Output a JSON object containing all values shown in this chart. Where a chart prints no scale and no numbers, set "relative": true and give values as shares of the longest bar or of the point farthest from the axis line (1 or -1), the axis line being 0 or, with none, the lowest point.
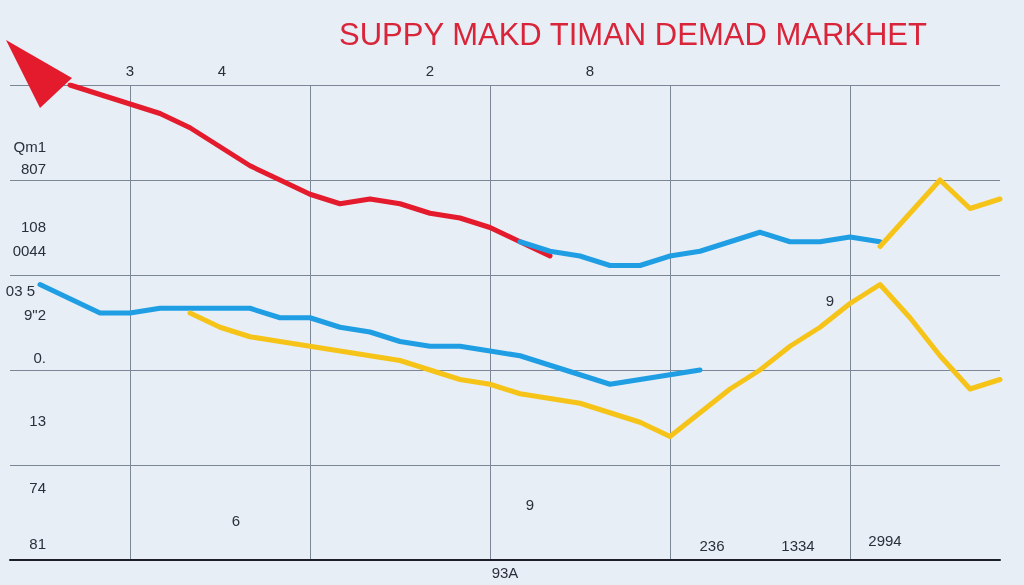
{
  "chart_data": {
    "type": "line",
    "title": "SUPPY MAKD TIMAN DEMAD MARKHET",
    "relative": true,
    "grid": true,
    "marker": "none",
    "categories": [
      null,
      null,
      null,
      null,
      null,
      null,
      null,
      null,
      null,
      null,
      null,
      null,
      null,
      null,
      null,
      null,
      null,
      null,
      null,
      null,
      null,
      null,
      null,
      null,
      null,
      null,
      null,
      null,
      null,
      null,
      null,
      null,
      null,
      null
    ],
    "series": [
      {
        "color": "#e41b2d",
        "values": [
          null,
          null,
          1.0,
          0.98,
          0.96,
          0.94,
          0.91,
          0.87,
          0.83,
          0.8,
          0.77,
          0.75,
          0.76,
          0.75,
          0.73,
          0.72,
          0.7,
          0.67,
          0.64,
          null,
          null,
          null,
          null,
          null,
          null,
          null,
          null,
          null,
          null,
          null,
          null,
          null,
          null,
          null
        ]
      },
      {
        "color": "#1f9ee3",
        "values": [
          null,
          null,
          null,
          null,
          null,
          null,
          null,
          null,
          null,
          null,
          null,
          null,
          null,
          null,
          null,
          null,
          null,
          0.67,
          0.65,
          0.64,
          0.62,
          0.62,
          0.64,
          0.65,
          0.67,
          0.69,
          0.67,
          0.67,
          0.68,
          0.67,
          null,
          null,
          null,
          null
        ]
      },
      {
        "color": "#f6c419",
        "values": [
          null,
          null,
          null,
          null,
          null,
          null,
          null,
          null,
          null,
          null,
          null,
          null,
          null,
          null,
          null,
          null,
          null,
          null,
          null,
          null,
          null,
          null,
          null,
          null,
          null,
          null,
          null,
          null,
          null,
          0.66,
          0.73,
          0.8,
          0.74,
          0.76
        ]
      },
      {
        "color": "#1f9ee3",
        "values": [
          null,
          0.58,
          0.55,
          0.52,
          0.52,
          0.53,
          0.53,
          0.53,
          0.53,
          0.51,
          0.51,
          0.49,
          0.48,
          0.46,
          0.45,
          0.45,
          0.44,
          0.43,
          0.41,
          0.39,
          0.37,
          0.38,
          0.39,
          0.4,
          null,
          null,
          null,
          null,
          null,
          null,
          null,
          null,
          null,
          null
        ]
      },
      {
        "color": "#f6c419",
        "values": [
          null,
          null,
          null,
          null,
          null,
          null,
          0.52,
          0.49,
          0.47,
          0.46,
          0.45,
          0.44,
          0.43,
          0.42,
          0.4,
          0.38,
          0.37,
          0.35,
          0.34,
          0.33,
          0.31,
          0.29,
          0.26,
          0.31,
          0.36,
          0.4,
          0.45,
          0.49,
          0.54,
          0.58,
          0.51,
          0.43,
          0.36,
          0.38
        ]
      }
    ],
    "annotations": [
      "Qm1",
      "807",
      "108",
      "0044",
      "03 5",
      "9\"2",
      "0.",
      "13",
      "74",
      "81",
      "3",
      "4",
      "2",
      "8",
      "6",
      "9",
      "93A",
      "236",
      "1334",
      "2994",
      "9"
    ]
  }
}
